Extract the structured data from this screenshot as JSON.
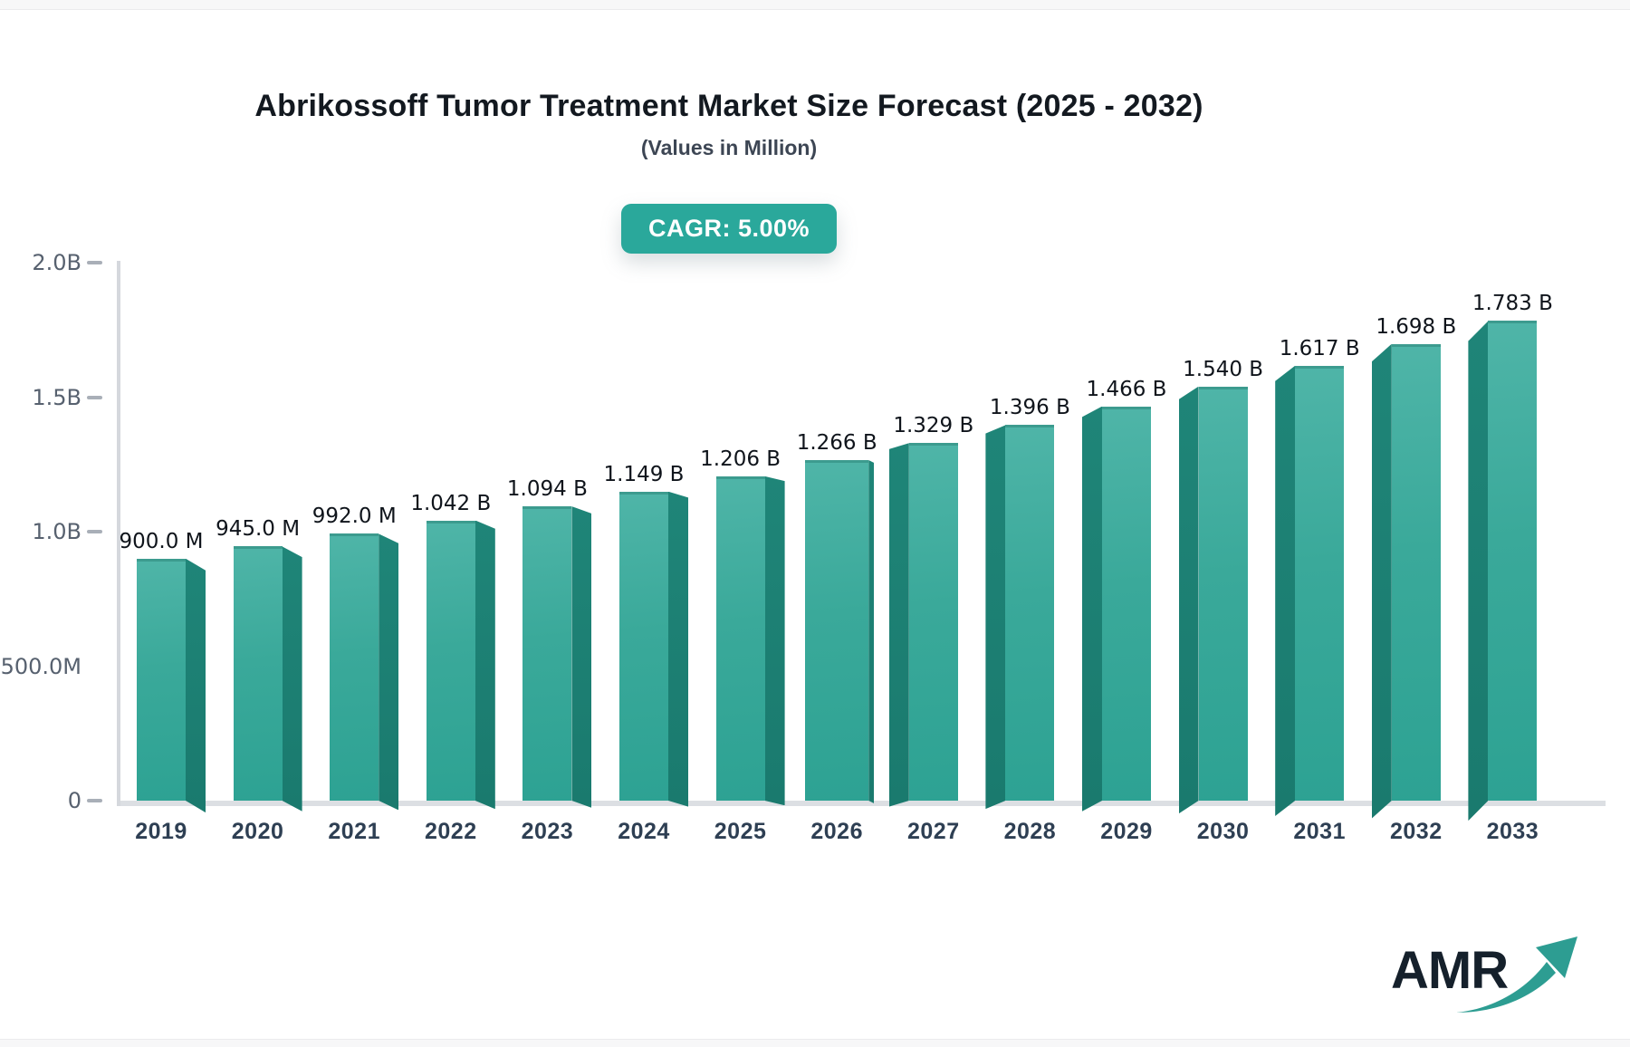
{
  "header": {
    "title": "Abrikossoff Tumor Treatment Market Size Forecast (2025 - 2032)",
    "subtitle": "(Values in Million)",
    "cagr_badge": "CAGR: 5.00%"
  },
  "chart_data": {
    "type": "bar",
    "title": "Abrikossoff Tumor Treatment Market Size Forecast (2025 - 2032)",
    "subtitle": "(Values in Million)",
    "cagr": "5.00%",
    "categories": [
      "2019",
      "2020",
      "2021",
      "2022",
      "2023",
      "2024",
      "2025",
      "2026",
      "2027",
      "2028",
      "2029",
      "2030",
      "2031",
      "2032",
      "2033"
    ],
    "values_millions": [
      900,
      945,
      992,
      1042,
      1094,
      1149,
      1206,
      1266,
      1329,
      1396,
      1466,
      1540,
      1617,
      1698,
      1783
    ],
    "value_labels": [
      "900.0 M",
      "945.0 M",
      "992.0 M",
      "1.042 B",
      "1.094 B",
      "1.149 B",
      "1.206 B",
      "1.266 B",
      "1.329 B",
      "1.396 B",
      "1.466 B",
      "1.540 B",
      "1.617 B",
      "1.698 B",
      "1.783 B"
    ],
    "xlabel": "",
    "ylabel": "",
    "ylim": [
      0,
      2000
    ],
    "y_ticks": [
      {
        "label": "2.0B",
        "value": 2000,
        "dash": true
      },
      {
        "label": "1.5B",
        "value": 1500,
        "dash": true
      },
      {
        "label": "1.0B",
        "value": 1000,
        "dash": true
      },
      {
        "label": "500.0M",
        "value": 500,
        "dash": false
      },
      {
        "label": "0",
        "value": 0,
        "dash": true
      }
    ],
    "grid": false,
    "legend_position": "none",
    "bar_style_3d": true
  },
  "colors": {
    "bar_main_top": "#4fb5a8",
    "bar_main_bottom": "#2da293",
    "bar_side": "#1d8174",
    "badge_bg": "#2aa89b",
    "badge_text": "#ffffff",
    "axis_line": "#d5d8dd",
    "baseline": "#dcdfe3",
    "y_tick_label": "#57616f",
    "x_label": "#2e3f53",
    "value_label": "#0f141b",
    "title": "#131920",
    "subtitle": "#3d4654",
    "logo_text": "#15202b",
    "logo_arrow": "#2d9d92"
  },
  "footer": {
    "logo_text": "AMR"
  }
}
